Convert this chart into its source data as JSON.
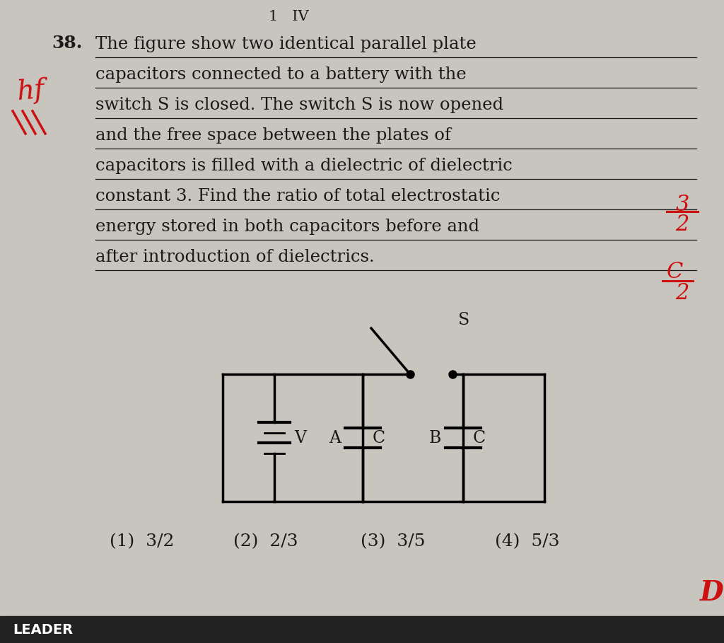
{
  "background_color": "#c8c4be",
  "text_color": "#1a1a1a",
  "question_number": "38.",
  "question_text_lines": [
    "The figure show two identical parallel plate",
    "capacitors connected to a battery with the",
    "switch S is closed. The switch S is now opened",
    "and the free space between the plates of",
    "capacitors is filled with a dielectric of dielectric",
    "constant 3. Find the ratio of total electrostatic",
    "energy stored in both capacitors before and",
    "after introduction of dielectrics."
  ],
  "options": [
    "(1)  3/2",
    "(2)  2/3",
    "(3)  3/5",
    "(4)  5/3"
  ],
  "circuit": {
    "battery_label": "V",
    "cap_a_label": "A",
    "cap_b_label": "B",
    "cap_c_label": "C",
    "switch_label": "S"
  },
  "top_text": "1   IV",
  "leader_bar_color": "#222222",
  "leader_text": "LEADER",
  "red_color": "#cc1111",
  "red_annotation_1_num": "3",
  "red_annotation_1_den": "2",
  "red_annotation_2_num": "C",
  "red_annotation_2_den": "2"
}
